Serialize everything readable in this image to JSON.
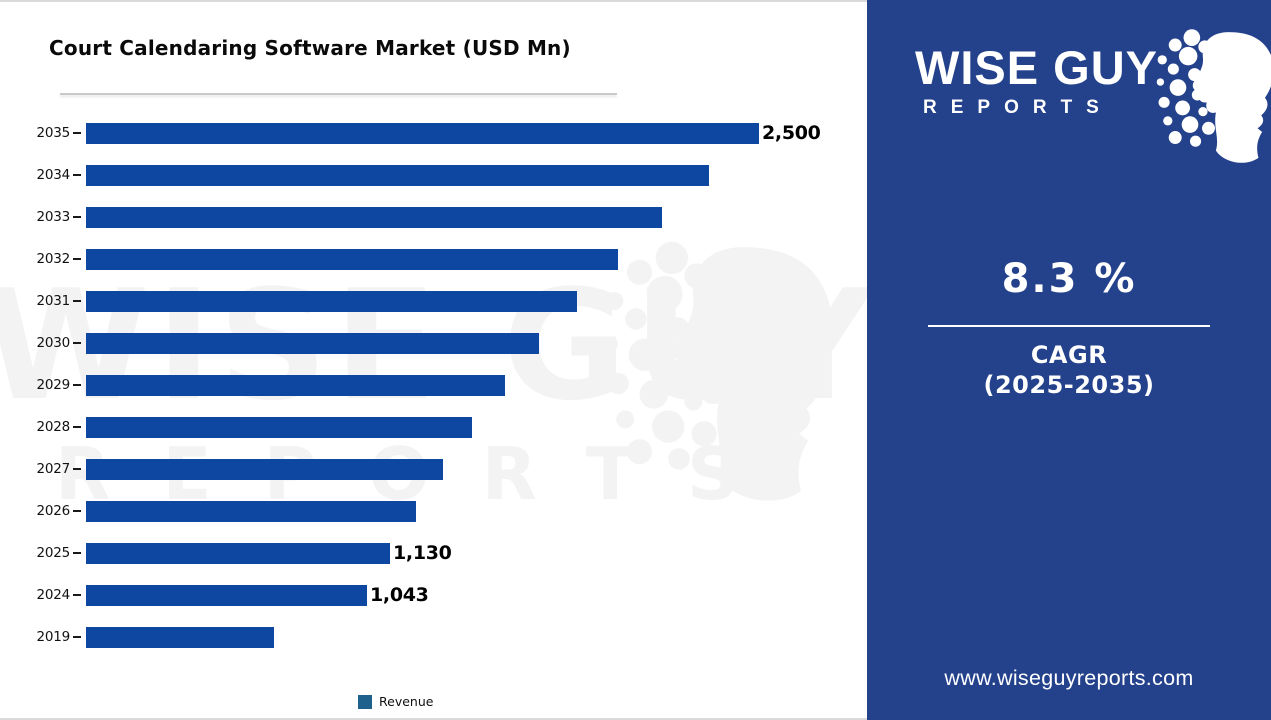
{
  "chart": {
    "title": "Court Calendaring Software Market (USD Mn)",
    "bar_color": "#0D47A1",
    "legend": {
      "label": "Revenue",
      "marker_color": "#1F618D"
    }
  },
  "chart_data": {
    "type": "bar",
    "orientation": "horizontal",
    "title": "Court Calendaring Software Market (USD Mn)",
    "units": "USD Mn",
    "categories": [
      "2035",
      "2034",
      "2033",
      "2032",
      "2031",
      "2030",
      "2029",
      "2028",
      "2027",
      "2026",
      "2025",
      "2024",
      "2019"
    ],
    "series": [
      {
        "name": "Revenue",
        "values": [
          2500,
          2316,
          2138,
          1975,
          1823,
          1684,
          1555,
          1435,
          1325,
          1224,
          1130,
          1043,
          700
        ]
      }
    ],
    "data_labels": {
      "2035": "2,500",
      "2025": "1,130",
      "2024": "1,043"
    },
    "xlim": [
      0,
      2500
    ],
    "grid": false,
    "legend_position": "bottom-center"
  },
  "watermark": {
    "line1": "WISE GUY",
    "line2": "REPORTS"
  },
  "sidebar": {
    "bg_color": "#24418C",
    "brand": {
      "line1": "WISE GUY",
      "line2": "REPORTS"
    },
    "cagr_value": "8.3 %",
    "cagr_label_line1": "CAGR",
    "cagr_label_line2": "(2025-2035)",
    "website": "www.wiseguyreports.com"
  }
}
